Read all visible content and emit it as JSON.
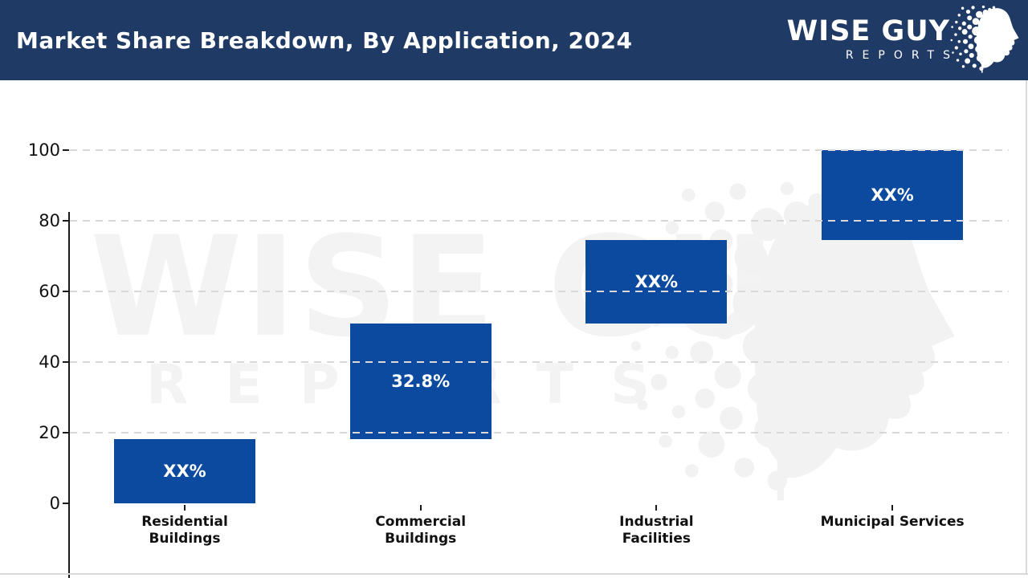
{
  "header": {
    "title": "Market Share Breakdown, By Application, 2024",
    "logo": {
      "line1": "WISE GUY",
      "line2": "REPORTS"
    }
  },
  "watermark": {
    "line1": "WISE GUY",
    "line2": "REPORTS"
  },
  "colors": {
    "header_bg": "#203a66",
    "bar_fill": "#0b4a9f",
    "grid": "#d8d8d8",
    "axis": "#1a1a1a",
    "watermark": "#f3f3f3"
  },
  "chart_data": {
    "type": "bar",
    "subtype": "floating-waterfall",
    "title": "Market Share Breakdown, By Application, 2024",
    "categories": [
      "Residential Buildings",
      "Commercial Buildings",
      "Industrial Facilities",
      "Municipal Services"
    ],
    "categories_lines": [
      [
        "Residential",
        "Buildings"
      ],
      [
        "Commercial",
        "Buildings"
      ],
      [
        "Industrial",
        "Facilities"
      ],
      [
        "Municipal Services"
      ]
    ],
    "bars": [
      {
        "category": "Residential Buildings",
        "start": 0,
        "end": 18.2,
        "label": "XX%"
      },
      {
        "category": "Commercial Buildings",
        "start": 18.2,
        "end": 51.0,
        "label": "32.8%"
      },
      {
        "category": "Industrial Facilities",
        "start": 51.0,
        "end": 74.6,
        "label": "XX%"
      },
      {
        "category": "Municipal Services",
        "start": 74.6,
        "end": 100,
        "label": "XX%"
      }
    ],
    "ylim": [
      0,
      100
    ],
    "yticks": [
      0,
      20,
      40,
      60,
      80,
      100
    ],
    "xlabel": "",
    "ylabel": "",
    "grid": "horizontal-dashed",
    "legend": "none"
  }
}
